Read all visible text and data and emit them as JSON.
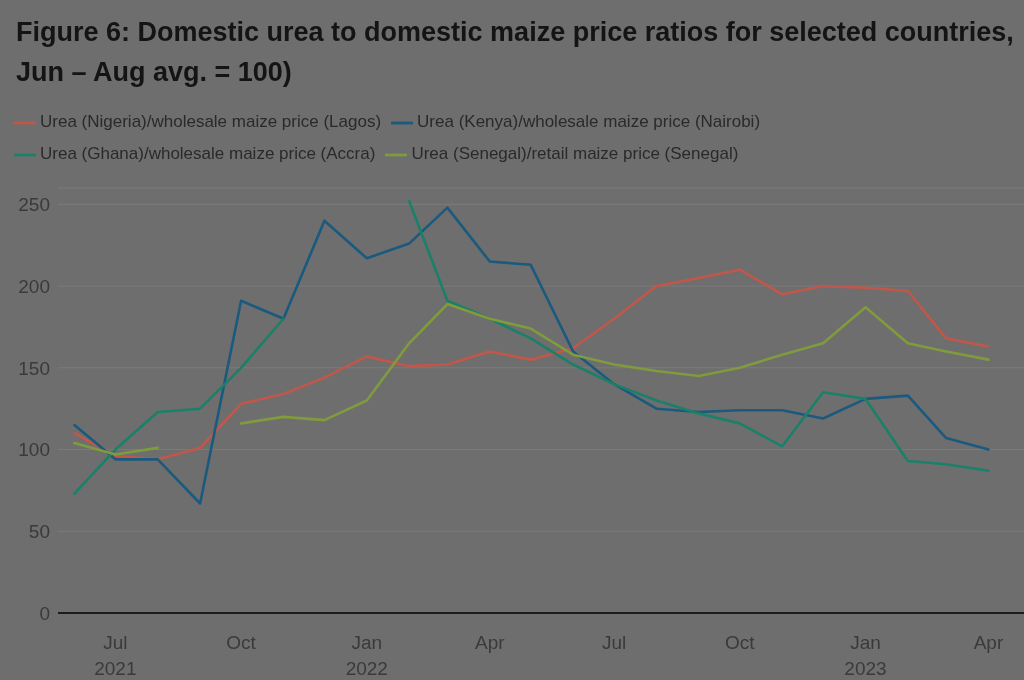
{
  "chart_data": {
    "type": "line",
    "title": "Figure 6: Domestic urea to domestic maize price ratios for selected countries, Jun – Aug avg. = 100)",
    "x": [
      "2021-06",
      "2021-07",
      "2021-08",
      "2021-09",
      "2021-10",
      "2021-11",
      "2021-12",
      "2022-01",
      "2022-02",
      "2022-03",
      "2022-04",
      "2022-05",
      "2022-06",
      "2022-07",
      "2022-08",
      "2022-09",
      "2022-10",
      "2022-11",
      "2022-12",
      "2023-01",
      "2023-02",
      "2023-03",
      "2023-04"
    ],
    "series": [
      {
        "name": "Urea (Nigeria)/wholesale maize price (Lagos)",
        "color": "#c0574a",
        "values": [
          110,
          96,
          94,
          101,
          128,
          134,
          144,
          157,
          151,
          152,
          160,
          155,
          162,
          180,
          200,
          205,
          210,
          195,
          200,
          199,
          197,
          168,
          163
        ]
      },
      {
        "name": "Urea (Kenya)/wholesale maize price (Nairobi)",
        "color": "#1a5a7e",
        "values": [
          115,
          94,
          94,
          67,
          191,
          180,
          240,
          217,
          226,
          248,
          215,
          213,
          160,
          140,
          125,
          123,
          124,
          124,
          119,
          131,
          133,
          107,
          100
        ]
      },
      {
        "name": "Urea (Ghana)/wholesale maize price (Accra)",
        "color": "#1b8068",
        "values": [
          73,
          100,
          123,
          125,
          150,
          180,
          null,
          null,
          252,
          191,
          180,
          168,
          152,
          140,
          130,
          122,
          116,
          102,
          135,
          131,
          93,
          91,
          87
        ]
      },
      {
        "name": "Urea (Senegal)/retail maize price (Senegal)",
        "color": "#7f9b3d",
        "values": [
          104,
          97,
          101,
          null,
          116,
          120,
          118,
          130,
          165,
          189,
          180,
          174,
          158,
          152,
          148,
          145,
          150,
          158,
          165,
          187,
          165,
          160,
          155
        ]
      }
    ],
    "xlim": [
      "2021-05-20",
      "2023-04-27"
    ],
    "xticks": [
      {
        "value": "2021-07",
        "label": "Jul\n2021"
      },
      {
        "value": "2021-10",
        "label": "Oct"
      },
      {
        "value": "2022-01",
        "label": "Jan\n2022"
      },
      {
        "value": "2022-04",
        "label": "Apr"
      },
      {
        "value": "2022-07",
        "label": "Jul"
      },
      {
        "value": "2022-10",
        "label": "Oct"
      },
      {
        "value": "2023-01",
        "label": "Jan\n2023"
      },
      {
        "value": "2023-04",
        "label": "Apr"
      }
    ],
    "ylim": [
      0,
      260
    ],
    "yticks": [
      0,
      50,
      100,
      150,
      200,
      250
    ],
    "grid": "y",
    "legend": "top left"
  }
}
